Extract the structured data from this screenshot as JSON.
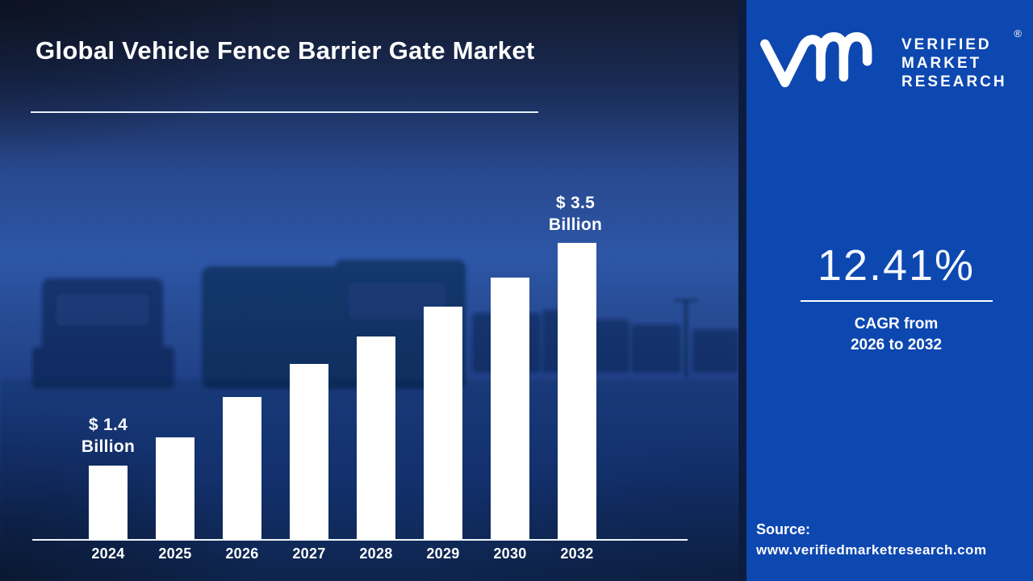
{
  "title": "Global Vehicle Fence Barrier Gate Market",
  "brand": {
    "logo_icon": "vmr-logo",
    "name_line1": "VERIFIED",
    "name_line2": "MARKET",
    "name_line3": "RESEARCH",
    "registered_mark": "®"
  },
  "cagr": {
    "value": "12.41%",
    "caption_line1": "CAGR from",
    "caption_line2": "2026 to 2032"
  },
  "source": {
    "label": "Source:",
    "url": "www.verifiedmarketresearch.com"
  },
  "chart_data": {
    "type": "bar",
    "title": "Global Vehicle Fence Barrier Gate Market",
    "unit": "USD Billion",
    "categories": [
      "2024",
      "2025",
      "2026",
      "2027",
      "2028",
      "2029",
      "2030",
      "2032"
    ],
    "values": [
      1.4,
      1.67,
      2.05,
      2.36,
      2.62,
      2.9,
      3.17,
      3.5
    ],
    "annotations": {
      "first_bar": [
        "$ 1.4",
        "Billion"
      ],
      "last_bar": [
        "$ 3.5",
        "Billion"
      ]
    },
    "xlabel": "",
    "ylabel": "",
    "ylim": [
      0,
      3.8
    ],
    "grid": false,
    "legend": false,
    "bar_color": "#ffffff",
    "axis_color": "#f2f6fc"
  },
  "colors": {
    "right_panel_bg": "#0d47b0",
    "divider": "#0c1c3e",
    "backdrop_top": "#161f36",
    "backdrop_sky": "#2d56a6",
    "backdrop_bottom": "#122450",
    "text": "#ffffff"
  }
}
